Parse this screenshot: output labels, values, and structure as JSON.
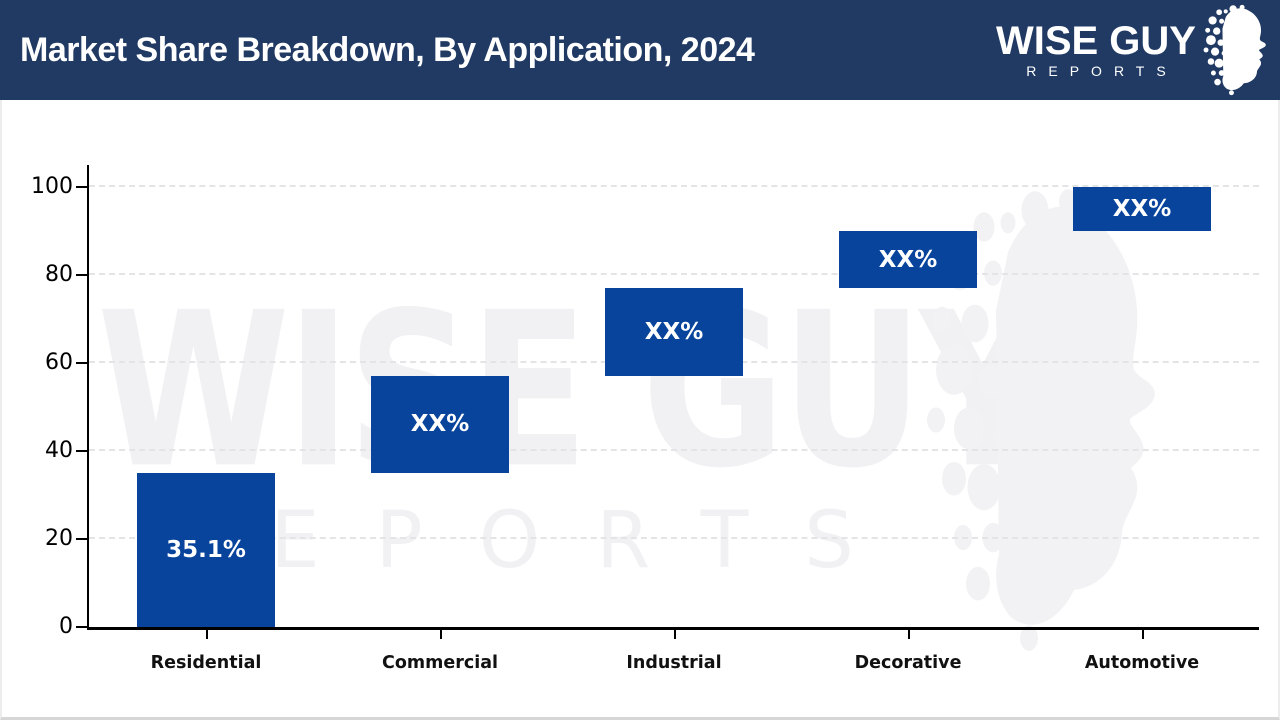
{
  "header": {
    "title": "Market Share Breakdown, By Application, 2024",
    "logo": {
      "line1": "WISE GUY",
      "line2": "REPORTS"
    }
  },
  "watermark": {
    "line1": "WISE GUY",
    "line2": "REPORTS"
  },
  "chart_data": {
    "type": "bar",
    "subtype": "waterfall",
    "title": "Market Share Breakdown, By Application, 2024",
    "categories": [
      "Residential",
      "Commercial",
      "Industrial",
      "Decorative",
      "Automotive"
    ],
    "segments": [
      {
        "category": "Residential",
        "start": 0,
        "end": 35.1,
        "label": "35.1%"
      },
      {
        "category": "Commercial",
        "start": 35.1,
        "end": 57,
        "label": "XX%"
      },
      {
        "category": "Industrial",
        "start": 57,
        "end": 77,
        "label": "XX%"
      },
      {
        "category": "Decorative",
        "start": 77,
        "end": 90,
        "label": "XX%"
      },
      {
        "category": "Automotive",
        "start": 90,
        "end": 100,
        "label": "XX%"
      }
    ],
    "yticks": [
      0,
      20,
      40,
      60,
      80,
      100
    ],
    "ylim": [
      0,
      105
    ],
    "xlabel": "",
    "ylabel": "",
    "grid": "dashed-horizontal",
    "legend": "none",
    "bar_color": "#08449C",
    "bar_label_color": "#ffffff"
  },
  "colors": {
    "header_bg": "#213A64",
    "bar": "#08449C",
    "axis": "#000000",
    "gridline": "#e4e4e6",
    "watermark": "#f1f1f4"
  }
}
